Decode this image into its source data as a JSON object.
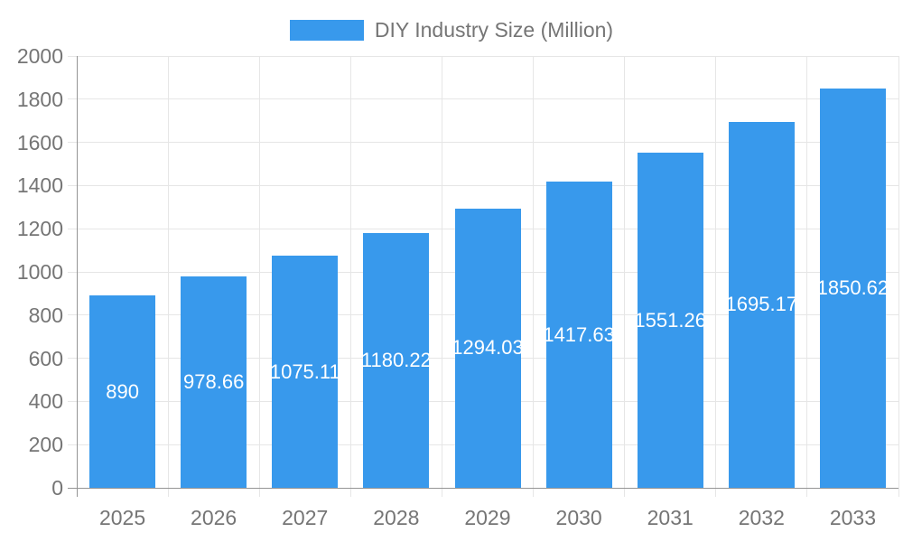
{
  "legend": {
    "label": "DIY Industry Size (Million)"
  },
  "colors": {
    "background": "#FFFFFF",
    "bar": "#3899EC",
    "grid": "#E6E6E6",
    "axis": "#949494",
    "tick_text": "#757575",
    "bar_label_text": "#FFFFFF"
  },
  "chart_data": {
    "type": "bar",
    "title": "DIY Industry Size (Million)",
    "legend_position": "top",
    "grid": true,
    "xlabel": "",
    "ylabel": "",
    "categories": [
      "2025",
      "2026",
      "2027",
      "2028",
      "2029",
      "2030",
      "2031",
      "2032",
      "2033"
    ],
    "series": [
      {
        "name": "DIY Industry Size (Million)",
        "values": [
          890,
          978.66,
          1075.11,
          1180.22,
          1294.03,
          1417.63,
          1551.26,
          1695.17,
          1850.62
        ]
      }
    ],
    "ylim": [
      0,
      2000
    ],
    "y_ticks": [
      0,
      200,
      400,
      600,
      800,
      1000,
      1200,
      1400,
      1600,
      1800,
      2000
    ]
  }
}
